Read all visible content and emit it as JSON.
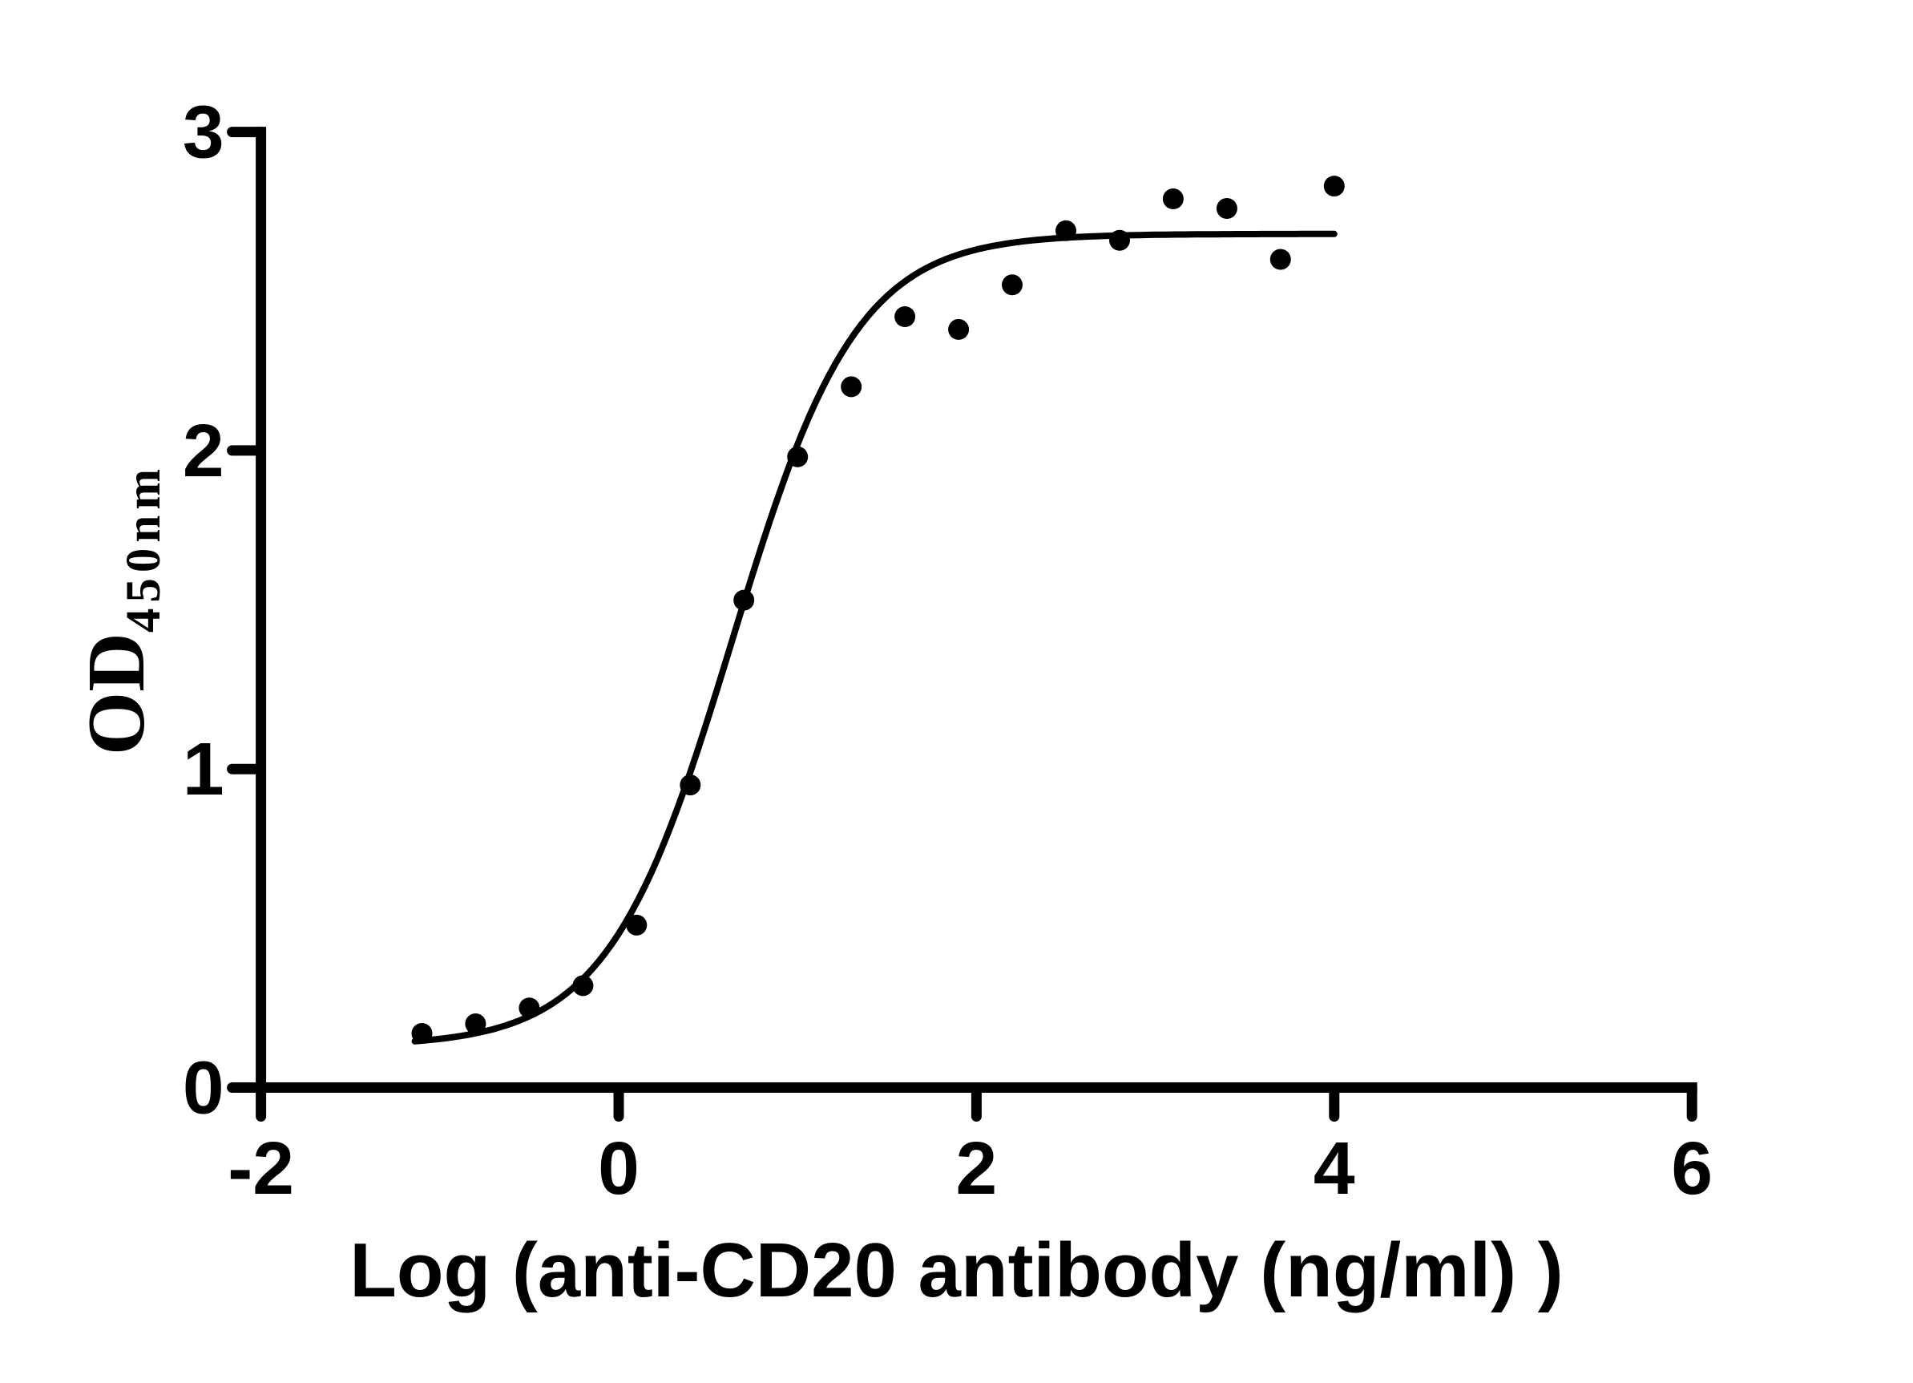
{
  "figure": {
    "background": "#ffffff",
    "ink_color": "#000000"
  },
  "chart_data": {
    "type": "scatter",
    "title": "",
    "xlabel": "Log (anti-CD20 antibody (ng/ml) )",
    "ylabel_main": "OD",
    "ylabel_sub": "450nm",
    "xlim": [
      -2,
      6
    ],
    "ylim": [
      0,
      3
    ],
    "x_ticks": [
      -2,
      0,
      2,
      4,
      6
    ],
    "y_ticks": [
      0,
      1,
      2,
      3
    ],
    "grid": false,
    "legend_position": "none",
    "marker_color": "#000000",
    "line_color": "#000000",
    "series": [
      {
        "name": "measured-points",
        "type": "scatter",
        "x": [
          -1.1,
          -0.8,
          -0.5,
          -0.2,
          0.1,
          0.4,
          0.7,
          1.0,
          1.3,
          1.6,
          1.9,
          2.2,
          2.5,
          2.8,
          3.1,
          3.4,
          3.7,
          4.0
        ],
        "y": [
          0.17,
          0.2,
          0.25,
          0.32,
          0.51,
          0.95,
          1.53,
          1.98,
          2.2,
          2.42,
          2.38,
          2.52,
          2.69,
          2.66,
          2.79,
          2.76,
          2.6,
          2.83
        ]
      },
      {
        "name": "fit-curve",
        "type": "line",
        "curve_fit": {
          "model": "4PL-logistic",
          "bottom": 0.13,
          "top": 2.68,
          "log_ec50": 0.635,
          "hill_slope": 1.25,
          "x_start": -1.14,
          "x_end": 4.0
        }
      }
    ]
  }
}
